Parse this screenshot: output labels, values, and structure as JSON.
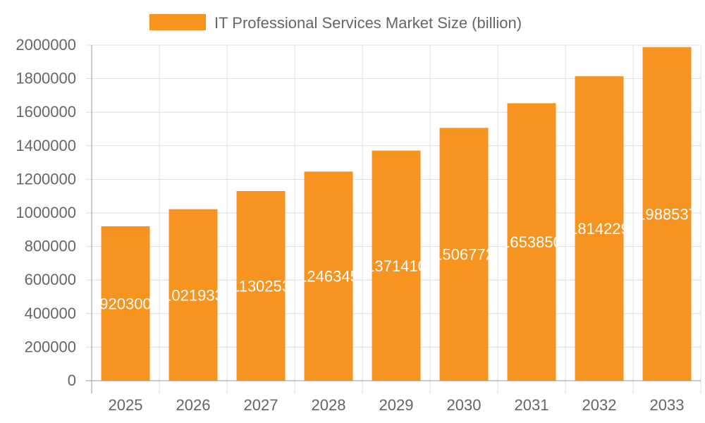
{
  "chart_data": {
    "type": "bar",
    "categories": [
      "2025",
      "2026",
      "2027",
      "2028",
      "2029",
      "2030",
      "2031",
      "2032",
      "2033"
    ],
    "series": [
      {
        "name": "IT Professional Services Market Size (billion)",
        "values": [
          920300,
          1021933,
          1130253,
          1246345,
          1371410,
          1506772,
          1653850,
          1814229,
          1988537
        ],
        "color": "#f7941f"
      }
    ],
    "ylim": [
      0,
      2000000
    ],
    "yticks": [
      0,
      200000,
      400000,
      600000,
      800000,
      1000000,
      1200000,
      1400000,
      1600000,
      1800000,
      2000000
    ],
    "grid": true,
    "legend": "top",
    "data_labels": true
  }
}
